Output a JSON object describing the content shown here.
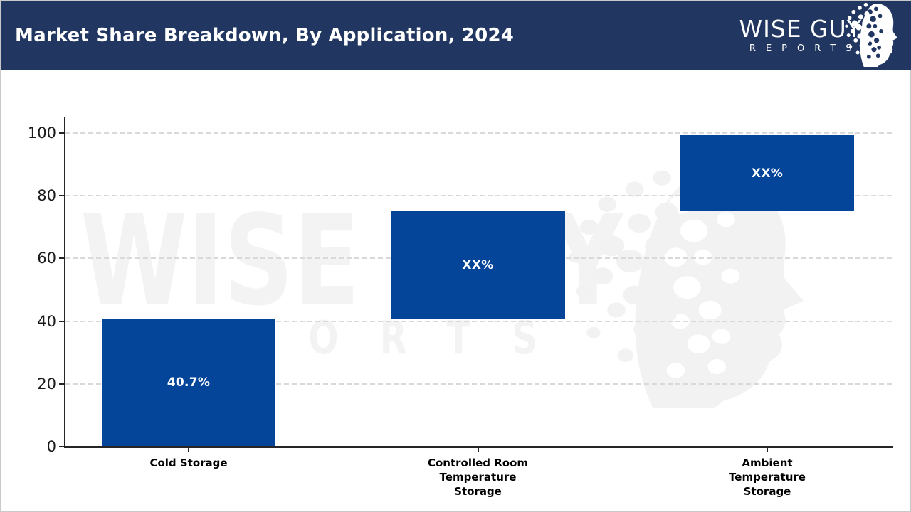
{
  "page": {
    "background": "#ffffff",
    "border_color": "#c9c9c9"
  },
  "header": {
    "background": "#213761",
    "title": "Market Share Breakdown, By Application, 2024",
    "logo": {
      "line1": "WISE GUY",
      "line2": "REPORTS",
      "face_icon": "dotted-head-profile"
    }
  },
  "watermark": {
    "line1": "WISE GUY",
    "line2": "REPORTS",
    "face_icon": "dotted-head-profile",
    "color": "#f3f3f3"
  },
  "chart_data": {
    "type": "bar",
    "variant": "stacked-waterfall",
    "title": "Market Share Breakdown, By Application, 2024",
    "categories": [
      "Cold Storage",
      "Controlled Room\nTemperature\nStorage",
      "Ambient\nTemperature\nStorage"
    ],
    "series": [
      {
        "name": "Market Share",
        "unit": "%",
        "segments": [
          {
            "category": "Cold Storage",
            "start": 0,
            "end": 40.7,
            "label": "40.7%"
          },
          {
            "category": "Controlled Room Temperature Storage",
            "start": 40.7,
            "end": 75,
            "label": "XX%"
          },
          {
            "category": "Ambient Temperature Storage",
            "start": 75,
            "end": 99.3,
            "label": "XX%"
          }
        ]
      }
    ],
    "bar_color": "#04459a",
    "bar_label_color": "#ffffff",
    "xlabel": "",
    "ylabel": "",
    "ylim": [
      0,
      105
    ],
    "yticks": [
      0,
      20,
      40,
      60,
      80,
      100
    ],
    "grid": {
      "axis": "y",
      "style": "dashed",
      "color": "#d9d9d9"
    },
    "legend": false
  }
}
